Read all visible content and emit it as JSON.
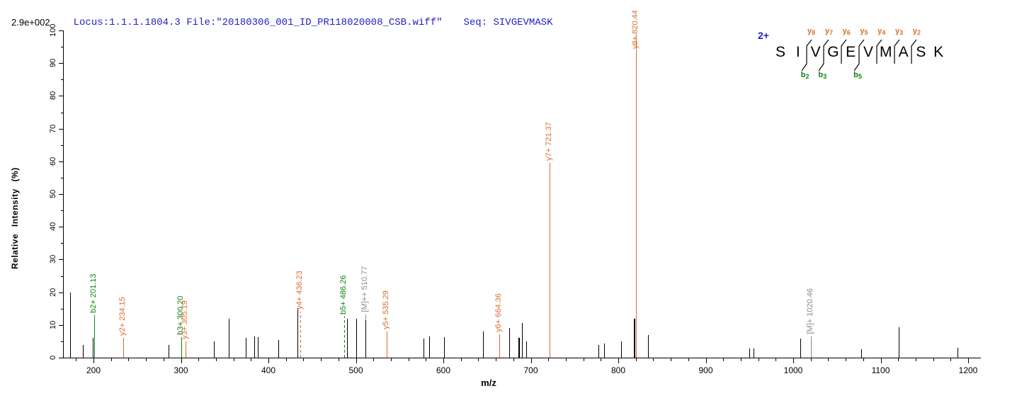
{
  "header": {
    "locus_text": "Locus:1.1.1.1804.3 File:\"20180306_001_ID_PR118020008_CSB.wiff\"",
    "seq_text": "Seq: SIVGEVMASK",
    "max_intensity": "2.9e+002"
  },
  "colors": {
    "header_blue": "#2121c8",
    "y_ion_orange": "#d96e30",
    "b_ion_green": "#0e820e",
    "precursor_grey": "#8a8a8a",
    "peak_black": "#000000",
    "axis_black": "#000000"
  },
  "sequence_panel": {
    "charge": "2+",
    "residues": [
      "S",
      "I",
      "V",
      "G",
      "E",
      "V",
      "M",
      "A",
      "S",
      "K"
    ],
    "cleavages": [
      {
        "after": 2,
        "y": "y8",
        "b": "b2"
      },
      {
        "after": 3,
        "y": "y7",
        "b": "b3"
      },
      {
        "after": 4,
        "y": "y6",
        "b": null
      },
      {
        "after": 5,
        "y": "y5",
        "b": "b5"
      },
      {
        "after": 6,
        "y": "y4",
        "b": null
      },
      {
        "after": 7,
        "y": "y3",
        "b": null
      },
      {
        "after": 8,
        "y": "y2",
        "b": null
      }
    ]
  },
  "chart_data": {
    "type": "bar",
    "subtype": "ms2-stick-spectrum",
    "title": "",
    "xlabel": "m/z",
    "ylabel": "Relative Intensity (%)",
    "xlim": [
      166,
      1213
    ],
    "ylim": [
      0,
      100
    ],
    "x_major_ticks": [
      200,
      300,
      400,
      500,
      600,
      700,
      800,
      900,
      1000,
      1100,
      1200
    ],
    "x_minor_step": 20,
    "y_major_ticks": [
      0,
      10,
      20,
      30,
      40,
      50,
      60,
      70,
      80,
      90,
      100
    ],
    "y_minor_step": 5,
    "grid": false,
    "peaks": [
      {
        "mz": 173.0,
        "intensity": 20.0,
        "type": "black"
      },
      {
        "mz": 188.0,
        "intensity": 4.0,
        "type": "black"
      },
      {
        "mz": 199.5,
        "intensity": 6.0,
        "type": "black"
      },
      {
        "mz": 201.13,
        "intensity": 13.0,
        "type": "b",
        "label": "b2+ 201.13"
      },
      {
        "mz": 234.15,
        "intensity": 6.0,
        "type": "y",
        "label": "y2+ 234.15"
      },
      {
        "mz": 286.0,
        "intensity": 4.0,
        "type": "black"
      },
      {
        "mz": 300.2,
        "intensity": 6.2,
        "type": "b",
        "label": "b3+ 300.20"
      },
      {
        "mz": 305.19,
        "intensity": 5.0,
        "type": "y",
        "label": "y3+ 305.19"
      },
      {
        "mz": 338.0,
        "intensity": 5.0,
        "type": "black"
      },
      {
        "mz": 355.0,
        "intensity": 11.8,
        "type": "black"
      },
      {
        "mz": 374.0,
        "intensity": 6.0,
        "type": "black"
      },
      {
        "mz": 384.0,
        "intensity": 6.5,
        "type": "black"
      },
      {
        "mz": 387.5,
        "intensity": 6.3,
        "type": "black"
      },
      {
        "mz": 411.0,
        "intensity": 5.5,
        "type": "black"
      },
      {
        "mz": 433.0,
        "intensity": 15.2,
        "type": "black"
      },
      {
        "mz": 436.23,
        "intensity": 14.0,
        "type": "y",
        "label": "y4+ 436.23",
        "dashed": true
      },
      {
        "mz": 486.26,
        "intensity": 12.5,
        "type": "b",
        "label": "b5+ 486.26",
        "dashed": true
      },
      {
        "mz": 489.5,
        "intensity": 12.0,
        "type": "black"
      },
      {
        "mz": 500.0,
        "intensity": 11.9,
        "type": "black"
      },
      {
        "mz": 510.77,
        "intensity": 13.2,
        "type": "M",
        "label": "[M]++ 510.77"
      },
      {
        "mz": 510.77,
        "intensity": 11.5,
        "type": "black"
      },
      {
        "mz": 535.29,
        "intensity": 8.0,
        "type": "y",
        "label": "y5+ 535.29"
      },
      {
        "mz": 577.0,
        "intensity": 5.8,
        "type": "black"
      },
      {
        "mz": 583.5,
        "intensity": 6.5,
        "type": "black"
      },
      {
        "mz": 601.0,
        "intensity": 6.3,
        "type": "black"
      },
      {
        "mz": 645.0,
        "intensity": 8.0,
        "type": "black"
      },
      {
        "mz": 664.36,
        "intensity": 7.2,
        "type": "y",
        "label": "y6+ 664.36"
      },
      {
        "mz": 675.0,
        "intensity": 9.0,
        "type": "black"
      },
      {
        "mz": 687.0,
        "intensity": 6.0,
        "type": "black",
        "wide": true
      },
      {
        "mz": 689.5,
        "intensity": 10.5,
        "type": "black"
      },
      {
        "mz": 694.5,
        "intensity": 5.0,
        "type": "black"
      },
      {
        "mz": 721.37,
        "intensity": 59.5,
        "type": "y",
        "label": "y7+ 721.37"
      },
      {
        "mz": 777.0,
        "intensity": 4.0,
        "type": "black"
      },
      {
        "mz": 784.0,
        "intensity": 4.3,
        "type": "black"
      },
      {
        "mz": 803.0,
        "intensity": 5.0,
        "type": "black"
      },
      {
        "mz": 818.5,
        "intensity": 12.0,
        "type": "black",
        "wide": true
      },
      {
        "mz": 820.44,
        "intensity": 99.0,
        "type": "y",
        "label": "y8+ 820.44",
        "label_drop": 24
      },
      {
        "mz": 834.0,
        "intensity": 7.0,
        "type": "black"
      },
      {
        "mz": 950.0,
        "intensity": 2.8,
        "type": "black"
      },
      {
        "mz": 954.5,
        "intensity": 2.8,
        "type": "black"
      },
      {
        "mz": 1008.0,
        "intensity": 5.8,
        "type": "black"
      },
      {
        "mz": 1020.46,
        "intensity": 6.5,
        "type": "M",
        "label": "[M]+ 1020.46"
      },
      {
        "mz": 1078.0,
        "intensity": 2.6,
        "type": "black"
      },
      {
        "mz": 1121.0,
        "intensity": 9.4,
        "type": "black"
      },
      {
        "mz": 1188.0,
        "intensity": 3.0,
        "type": "black"
      }
    ]
  }
}
